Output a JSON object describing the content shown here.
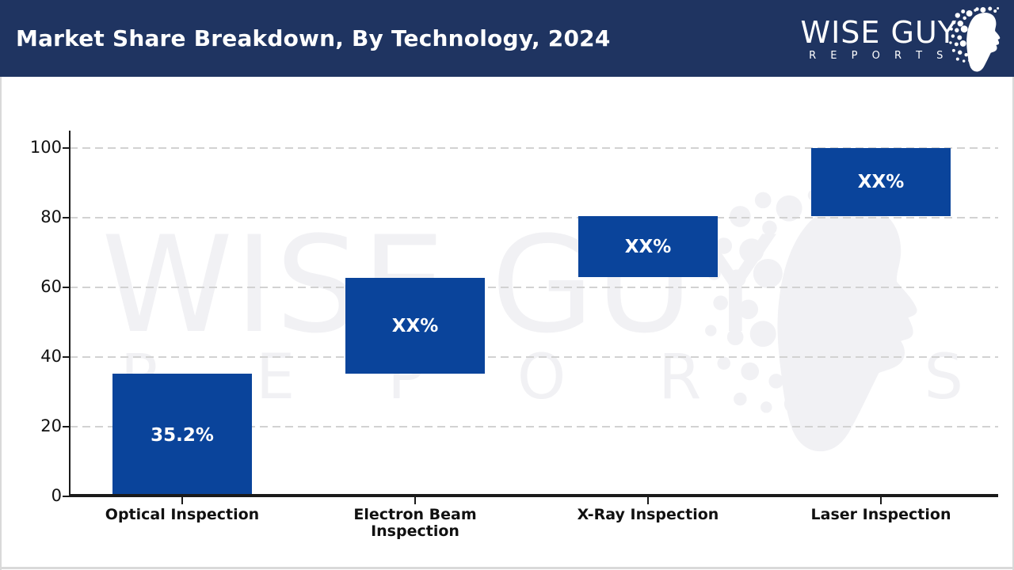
{
  "header": {
    "title": "Market Share Breakdown, By Technology, 2024",
    "bg_color": "#1f3461",
    "logo": {
      "line1": "WISE GUY",
      "line2": "R E P O R T S"
    }
  },
  "watermark": {
    "line1": "WISE GUY",
    "line2": "R E P O R T S"
  },
  "chart_data": {
    "type": "bar",
    "subtype": "floating-stacked-percentage",
    "title": "Market Share Breakdown, By Technology, 2024",
    "categories": [
      "Optical Inspection",
      "Electron Beam Inspection",
      "X-Ray Inspection",
      "Laser Inspection"
    ],
    "bars": [
      {
        "category": "Optical Inspection",
        "from": 0,
        "to": 35.2,
        "label": "35.2%"
      },
      {
        "category": "Electron Beam Inspection",
        "from": 35.2,
        "to": 62.7,
        "label": "XX%"
      },
      {
        "category": "X-Ray Inspection",
        "from": 62.9,
        "to": 80.4,
        "label": "XX%"
      },
      {
        "category": "Laser Inspection",
        "from": 80.5,
        "to": 100,
        "label": "XX%"
      }
    ],
    "yticks": [
      0,
      20,
      40,
      60,
      80,
      100
    ],
    "ylim": [
      0,
      105
    ],
    "xlabel": "",
    "ylabel": "",
    "grid": "horizontal-dashed",
    "legend": "none",
    "bar_color": "#0a449b",
    "bar_label_color": "#ffffff",
    "axis_color": "#1a1a1a"
  }
}
